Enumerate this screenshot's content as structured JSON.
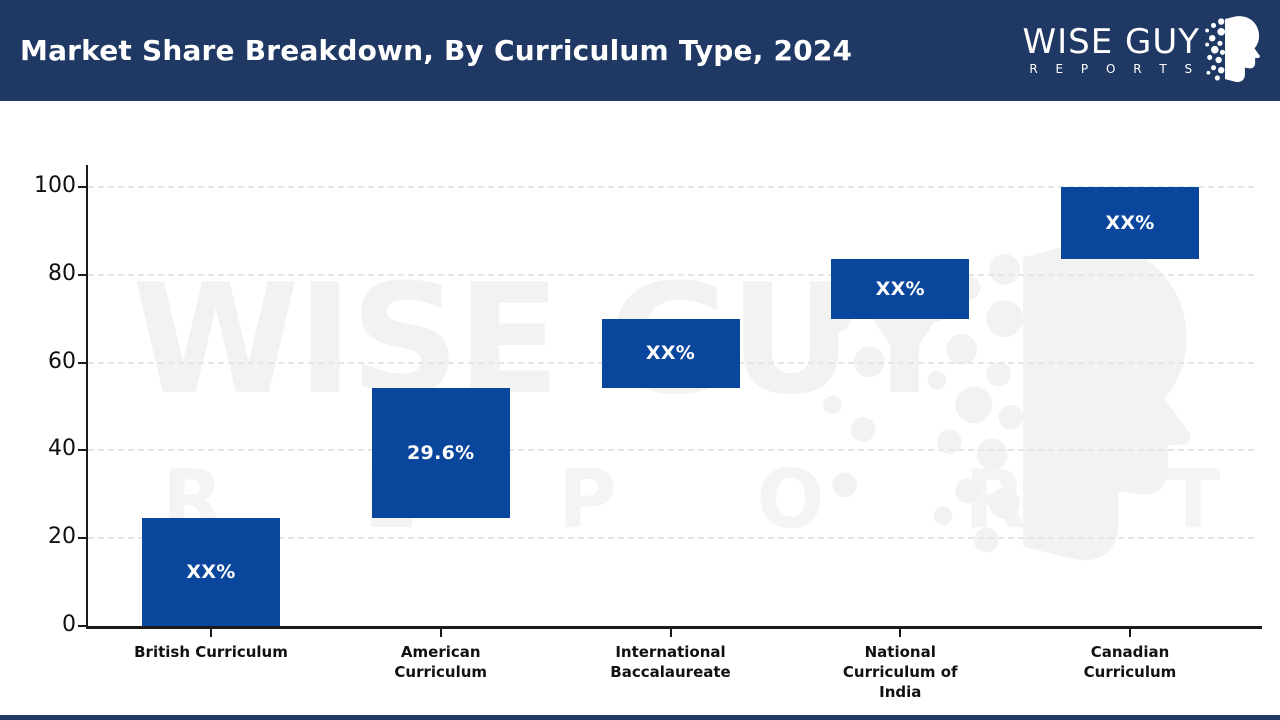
{
  "header": {
    "title": "Market Share Breakdown, By Curriculum Type, 2024",
    "logo": {
      "main": "WISE GUY",
      "sub": "R E P O R T S"
    }
  },
  "watermark": {
    "main": "WISE GUY",
    "sub": "R E P O R T S"
  },
  "colors": {
    "header_bg": "#1f3864",
    "bar": "#0b469d",
    "bar_label": "#ffffff",
    "axis": "#1a1a1a",
    "gridline": "#e6e6e6",
    "watermark": "#f2f2f2",
    "footer_bg": "#1f3864"
  },
  "chart_data": {
    "type": "bar",
    "subtype": "floating-waterfall",
    "title": "Market Share Breakdown, By Curriculum Type, 2024",
    "categories": [
      "British Curriculum",
      "American Curriculum",
      "International Baccalaureate",
      "National Curriculum of India",
      "Canadian Curriculum"
    ],
    "categories_wrapped": [
      "British Curriculum",
      "American\nCurriculum",
      "International\nBaccalaureate",
      "National\nCurriculum of\nIndia",
      "Canadian\nCurriculum"
    ],
    "bars": [
      {
        "category": "British Curriculum",
        "start": 0,
        "end": 24.6,
        "label": "XX%"
      },
      {
        "category": "American Curriculum",
        "start": 24.6,
        "end": 54.2,
        "label": "29.6%",
        "value": 29.6
      },
      {
        "category": "International Baccalaureate",
        "start": 54.2,
        "end": 70.0,
        "label": "XX%"
      },
      {
        "category": "National Curriculum of India",
        "start": 70.0,
        "end": 83.6,
        "label": "XX%"
      },
      {
        "category": "Canadian Curriculum",
        "start": 83.6,
        "end": 100.0,
        "label": "XX%"
      }
    ],
    "xlabel": "",
    "ylabel": "",
    "ylim": [
      0,
      105
    ],
    "yticks": [
      0,
      20,
      40,
      60,
      80,
      100
    ],
    "grid": "horizontal-dashed",
    "legend": "none"
  }
}
